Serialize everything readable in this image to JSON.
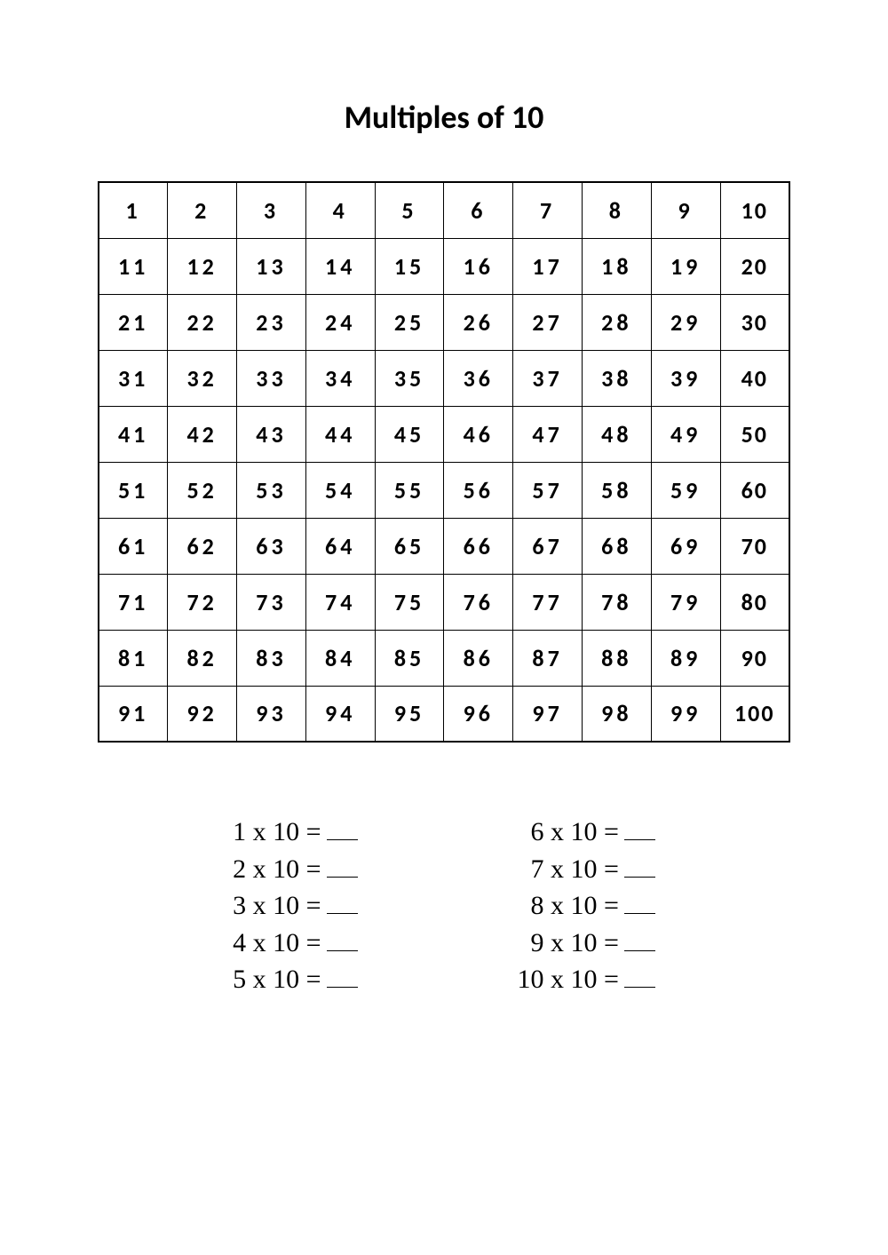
{
  "title": "Multiples of 10",
  "table": {
    "type": "table",
    "columns_count": 10,
    "rows_count": 10,
    "cell_border_color": "#000000",
    "cell_fontsize": 26,
    "cell_font_weight": "bold",
    "cell_letter_spacing": 4,
    "background_color": "#ffffff",
    "rows": [
      [
        "1",
        "2",
        "3",
        "4",
        "5",
        "6",
        "7",
        "8",
        "9",
        "10"
      ],
      [
        "11",
        "12",
        "13",
        "14",
        "15",
        "16",
        "17",
        "18",
        "19",
        "20"
      ],
      [
        "21",
        "22",
        "23",
        "24",
        "25",
        "26",
        "27",
        "28",
        "29",
        "30"
      ],
      [
        "31",
        "32",
        "33",
        "34",
        "35",
        "36",
        "37",
        "38",
        "39",
        "40"
      ],
      [
        "41",
        "42",
        "43",
        "44",
        "45",
        "46",
        "47",
        "48",
        "49",
        "50"
      ],
      [
        "51",
        "52",
        "53",
        "54",
        "55",
        "56",
        "57",
        "58",
        "59",
        "60"
      ],
      [
        "61",
        "62",
        "63",
        "64",
        "65",
        "66",
        "67",
        "68",
        "69",
        "70"
      ],
      [
        "71",
        "72",
        "73",
        "74",
        "75",
        "76",
        "77",
        "78",
        "79",
        "80"
      ],
      [
        "81",
        "82",
        "83",
        "84",
        "85",
        "86",
        "87",
        "88",
        "89",
        "90"
      ],
      [
        "91",
        "92",
        "93",
        "94",
        "95",
        "96",
        "97",
        "98",
        "99",
        "100"
      ]
    ]
  },
  "equations": {
    "font_family": "Times New Roman",
    "fontsize": 30,
    "text_color": "#000000",
    "left_column": [
      "1 x 10 = ",
      "2 x 10 = ",
      "3 x 10 = ",
      "4 x 10 = ",
      "5 x 10 = "
    ],
    "right_column": [
      "6 x 10 = ",
      "7 x 10 = ",
      "8 x 10 = ",
      "9 x 10 = ",
      "10 x 10 = "
    ]
  }
}
